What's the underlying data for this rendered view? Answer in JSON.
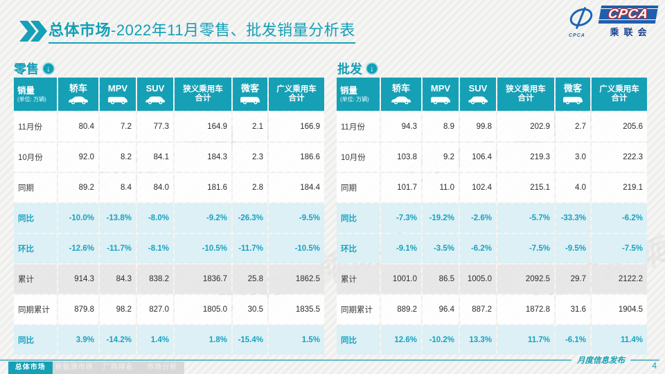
{
  "slide": {
    "title_bold": "总体市场",
    "title_rest": "-2022年11月零售、批发销量分析表",
    "publish_label": "月度信息发布",
    "page_number": "4"
  },
  "logo": {
    "cpca_text": "CPCA",
    "org_text": "乘联会",
    "cada_text": "CPCA"
  },
  "icons": {
    "down_arrow": "↓"
  },
  "watermark": "CPCA 乘联会",
  "colors": {
    "accent": "#129fb7",
    "header_bg": "#16a0b6",
    "percent_bg": "#dcf0f5",
    "percent_text": "#1aa2c0",
    "total_row_bg": "#e6e6e6",
    "logo_blue": "#1e5fae"
  },
  "columns": [
    {
      "title": "销量",
      "sub": "(单位: 万辆)"
    },
    {
      "title": "轿车",
      "icon": "sedan-car-icon"
    },
    {
      "title": "MPV",
      "icon": "mpv-car-icon"
    },
    {
      "title": "SUV",
      "icon": "suv-car-icon"
    },
    {
      "title": "狭义乘用车",
      "title2": "合计"
    },
    {
      "title": "微客",
      "icon": "microvan-icon"
    },
    {
      "title": "广义乘用车",
      "title2": "合计"
    }
  ],
  "tables": [
    {
      "name": "零售",
      "rows": [
        {
          "label": "11月份",
          "style": "plain",
          "values": [
            "80.4",
            "7.2",
            "77.3",
            "164.9",
            "2.1",
            "166.9"
          ]
        },
        {
          "label": "10月份",
          "style": "plain",
          "values": [
            "92.0",
            "8.2",
            "84.1",
            "184.3",
            "2.3",
            "186.6"
          ]
        },
        {
          "label": "同期",
          "style": "plain",
          "values": [
            "89.2",
            "8.4",
            "84.0",
            "181.6",
            "2.8",
            "184.4"
          ]
        },
        {
          "label": "同比",
          "style": "percent",
          "values": [
            "-10.0%",
            "-13.8%",
            "-8.0%",
            "-9.2%",
            "-26.3%",
            "-9.5%"
          ]
        },
        {
          "label": "环比",
          "style": "percent",
          "values": [
            "-12.6%",
            "-11.7%",
            "-8.1%",
            "-10.5%",
            "-11.7%",
            "-10.5%"
          ]
        },
        {
          "label": "累计",
          "style": "total",
          "values": [
            "914.3",
            "84.3",
            "838.2",
            "1836.7",
            "25.8",
            "1862.5"
          ]
        },
        {
          "label": "同期累计",
          "style": "plain",
          "values": [
            "879.8",
            "98.2",
            "827.0",
            "1805.0",
            "30.5",
            "1835.5"
          ]
        },
        {
          "label": "同比",
          "style": "percent",
          "values": [
            "3.9%",
            "-14.2%",
            "1.4%",
            "1.8%",
            "-15.4%",
            "1.5%"
          ]
        }
      ]
    },
    {
      "name": "批发",
      "rows": [
        {
          "label": "11月份",
          "style": "plain",
          "values": [
            "94.3",
            "8.9",
            "99.8",
            "202.9",
            "2.7",
            "205.6"
          ]
        },
        {
          "label": "10月份",
          "style": "plain",
          "values": [
            "103.8",
            "9.2",
            "106.4",
            "219.3",
            "3.0",
            "222.3"
          ]
        },
        {
          "label": "同期",
          "style": "plain",
          "values": [
            "101.7",
            "11.0",
            "102.4",
            "215.1",
            "4.0",
            "219.1"
          ]
        },
        {
          "label": "同比",
          "style": "percent",
          "values": [
            "-7.3%",
            "-19.2%",
            "-2.6%",
            "-5.7%",
            "-33.3%",
            "-6.2%"
          ]
        },
        {
          "label": "环比",
          "style": "percent",
          "values": [
            "-9.1%",
            "-3.5%",
            "-6.2%",
            "-7.5%",
            "-9.5%",
            "-7.5%"
          ]
        },
        {
          "label": "累计",
          "style": "total",
          "values": [
            "1001.0",
            "86.5",
            "1005.0",
            "2092.5",
            "29.7",
            "2122.2"
          ]
        },
        {
          "label": "同期累计",
          "style": "plain",
          "values": [
            "889.2",
            "96.4",
            "887.2",
            "1872.8",
            "31.6",
            "1904.5"
          ]
        },
        {
          "label": "同比",
          "style": "percent",
          "values": [
            "12.6%",
            "-10.2%",
            "13.3%",
            "11.7%",
            "-6.1%",
            "11.4%"
          ]
        }
      ]
    }
  ],
  "footer_tabs": [
    {
      "label": "总体市场",
      "active": true
    },
    {
      "label": "新能源市场",
      "active": false
    },
    {
      "label": "厂商排名",
      "active": false
    },
    {
      "label": "市场分析",
      "active": false
    }
  ]
}
